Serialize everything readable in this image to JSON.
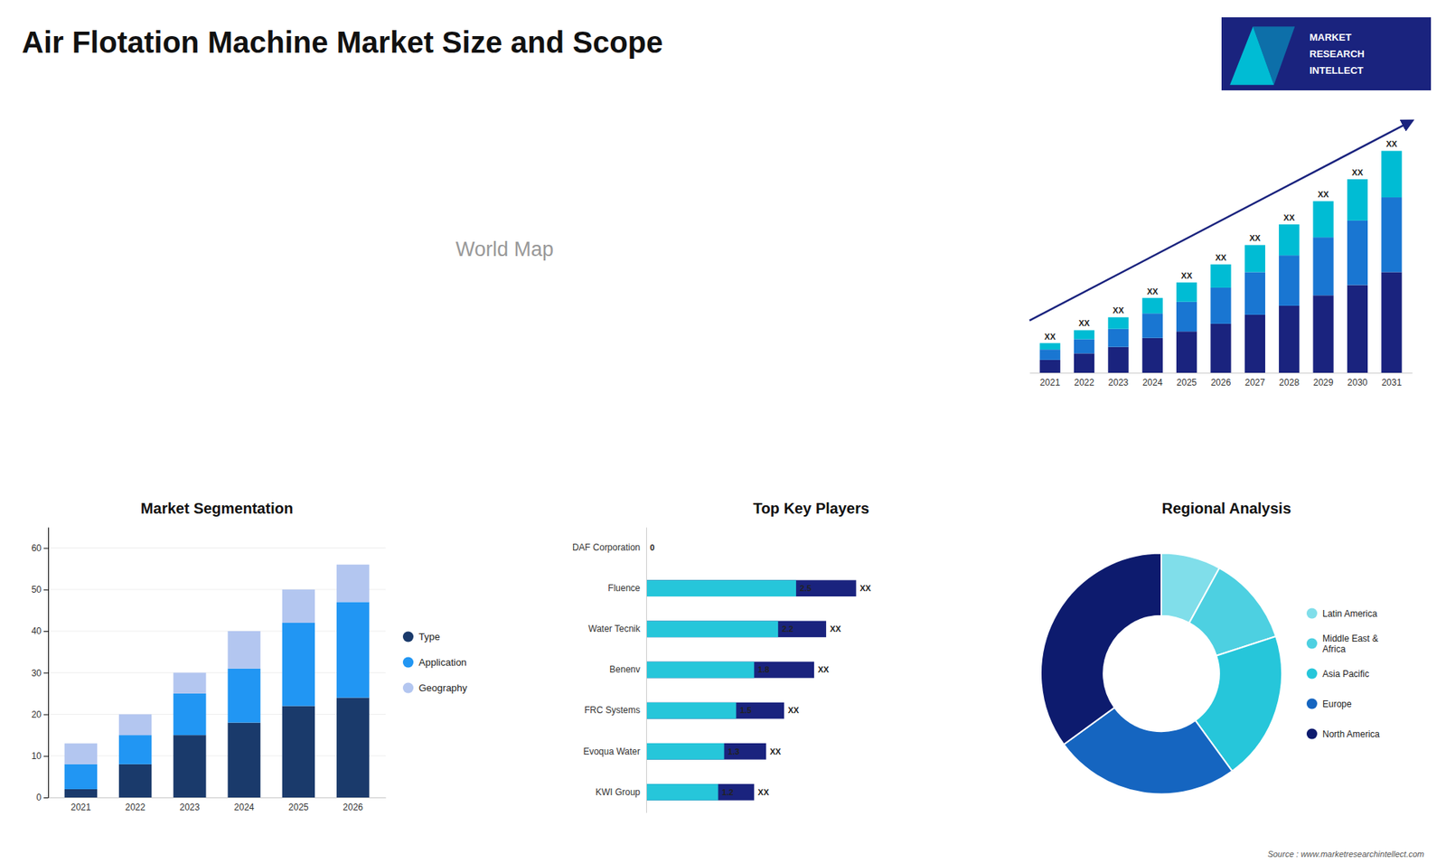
{
  "title": "Air Flotation Machine Market Size and Scope",
  "annotations": [
    "World Map",
    "MARKET",
    "RESEARCH",
    "INTELLECT",
    "Source : www.marketresearchintellect.com"
  ],
  "chart_data": [
    {
      "type": "bar",
      "stacked": true,
      "categories": [
        "2021",
        "2022",
        "2023",
        "2024",
        "2025",
        "2026",
        "2027",
        "2028",
        "2029",
        "2030",
        "2031"
      ],
      "series": [
        {
          "color": "#1a237e",
          "values": [
            1.0,
            1.5,
            2.0,
            2.7,
            3.2,
            3.8,
            4.5,
            5.2,
            6.0,
            6.8,
            7.8
          ]
        },
        {
          "color": "#1976d2",
          "values": [
            0.8,
            1.1,
            1.4,
            1.9,
            2.3,
            2.8,
            3.3,
            3.9,
            4.5,
            5.0,
            5.8
          ]
        },
        {
          "color": "#00bcd4",
          "values": [
            0.5,
            0.7,
            0.9,
            1.2,
            1.5,
            1.8,
            2.1,
            2.4,
            2.8,
            3.2,
            3.6
          ]
        }
      ],
      "ylim": [
        0,
        20.2
      ],
      "tick_labels": "x",
      "annotations": [
        {
          "text": "XX",
          "x": "2021"
        },
        {
          "text": "XX",
          "x": "2022"
        },
        {
          "text": "XX",
          "x": "2023"
        },
        {
          "text": "XX",
          "x": "2024"
        },
        {
          "text": "XX",
          "x": "2025"
        },
        {
          "text": "XX",
          "x": "2026"
        },
        {
          "text": "XX",
          "x": "2027"
        },
        {
          "text": "XX",
          "x": "2028"
        },
        {
          "text": "XX",
          "x": "2029"
        },
        {
          "text": "XX",
          "x": "2030"
        },
        {
          "text": "XX",
          "x": "2031"
        }
      ]
    },
    {
      "type": "bar",
      "stacked": true,
      "title": "Market Segmentation",
      "categories": [
        "2021",
        "2022",
        "2023",
        "2024",
        "2025",
        "2026"
      ],
      "series": [
        {
          "name": "Type",
          "color": "#1a3a6b",
          "values": [
            2,
            8,
            15,
            18,
            22,
            24
          ]
        },
        {
          "name": "Application",
          "color": "#2196f3",
          "values": [
            6,
            7,
            10,
            13,
            20,
            23
          ]
        },
        {
          "name": "Geography",
          "color": "#b3c6f0",
          "values": [
            5,
            5,
            5,
            9,
            8,
            9
          ]
        }
      ],
      "ylim": [
        0,
        65
      ],
      "yticks": [
        0,
        10,
        20,
        30,
        40,
        50,
        60
      ],
      "grid": true,
      "legend": "right"
    },
    {
      "type": "bar",
      "orientation": "horizontal",
      "stacked": false,
      "title": "Top Key Players",
      "categories": [
        "DAF Corporation",
        "Fluence",
        "Water Tecnik",
        "Benenv",
        "FRC Systems",
        "Evoqua Water",
        "KWI Group"
      ],
      "series": [
        {
          "color": "#1a237e",
          "values": [
            0.0,
            3.5,
            3.0,
            2.8,
            2.3,
            2.0,
            1.8
          ],
          "value_labels": [
            null,
            "XX",
            "XX",
            "XX",
            "XX",
            "XX",
            "XX"
          ]
        },
        {
          "color": "#26c6da",
          "values": [
            0.0,
            2.5,
            2.2,
            1.8,
            1.5,
            1.3,
            1.2
          ]
        }
      ],
      "xlim": [
        0,
        5.5
      ],
      "tick_labels": "y",
      "data_labels": true
    },
    {
      "type": "donut",
      "title": "Regional Analysis",
      "categories": [
        "Latin America",
        "Middle East &\nAfrica",
        "Asia Pacific",
        "Europe",
        "North America"
      ],
      "values": [
        8,
        12,
        20,
        25,
        35
      ],
      "colors": [
        "#80deea",
        "#4dd0e1",
        "#26c6da",
        "#1565c0",
        "#0d1b6e"
      ],
      "legend": "right"
    }
  ]
}
